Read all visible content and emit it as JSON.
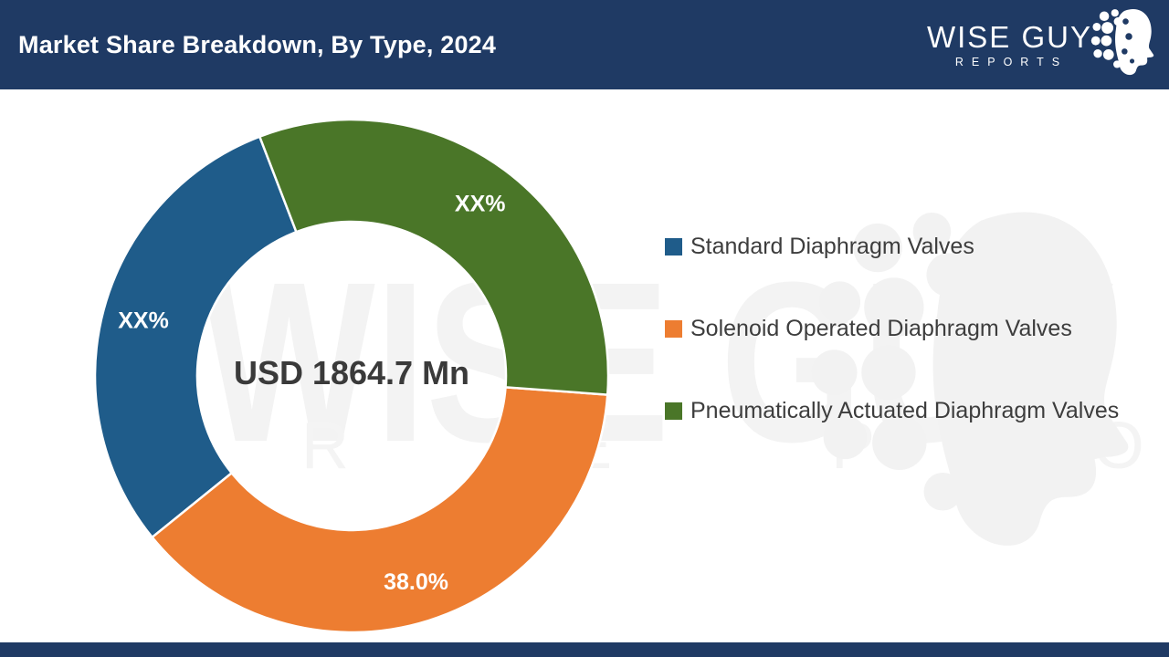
{
  "header": {
    "title": "Market Share Breakdown, By Type, 2024",
    "logo": {
      "line1": "WISE GUY",
      "line2": "REPORTS"
    },
    "bg_color": "#1f3a64"
  },
  "watermark": {
    "line1": "WISE GUY",
    "line2": "R E P O R T S"
  },
  "chart_data": {
    "type": "donut",
    "title": "Market Share Breakdown, By Type, 2024",
    "center_label": "USD 1864.7 Mn",
    "start_angle_deg": 111,
    "direction": "counterclockwise",
    "legend_position": "right",
    "slices": [
      {
        "label": "Standard Diaphragm Valves",
        "value": 30,
        "display_value": "XX%",
        "color": "#1f5c8a"
      },
      {
        "label": "Solenoid Operated Diaphragm Valves",
        "value": 38,
        "display_value": "38.0%",
        "color": "#ed7d31"
      },
      {
        "label": "Pneumatically Actuated Diaphragm Valves",
        "value": 32,
        "display_value": "XX%",
        "color": "#4a7628"
      }
    ]
  },
  "footer": {
    "bg_color": "#1f3a64"
  }
}
